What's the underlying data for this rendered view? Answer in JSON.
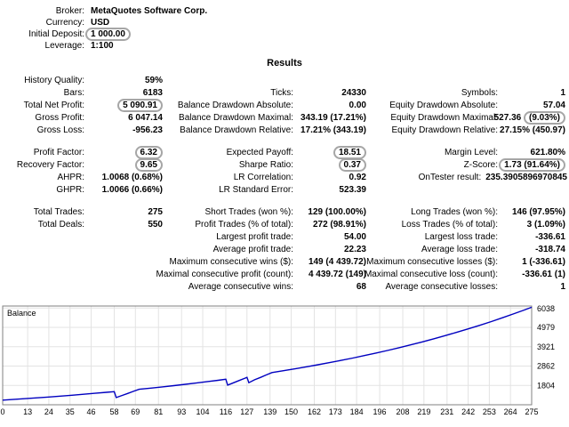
{
  "header": {
    "broker_label": "Broker:",
    "broker_value": "MetaQuotes Software Corp.",
    "currency_label": "Currency:",
    "currency_value": "USD",
    "deposit_label": "Initial Deposit:",
    "deposit_value": "1 000.00",
    "leverage_label": "Leverage:",
    "leverage_value": "1:100"
  },
  "title": "Results",
  "stats": {
    "rows": [
      {
        "cells": [
          {
            "l": "History Quality:",
            "v": "59%"
          },
          null,
          null
        ]
      },
      {
        "cells": [
          {
            "l": "Bars:",
            "v": "6183"
          },
          {
            "l": "Ticks:",
            "v": "24330"
          },
          {
            "l": "Symbols:",
            "v": "1"
          }
        ]
      },
      {
        "cells": [
          {
            "l": "Total Net Profit:",
            "v": "5 090.91",
            "oval": true
          },
          {
            "l": "Balance Drawdown Absolute:",
            "v": "0.00"
          },
          {
            "l": "Equity Drawdown Absolute:",
            "v": "57.04"
          }
        ]
      },
      {
        "cells": [
          {
            "l": "Gross Profit:",
            "v": "6 047.14"
          },
          {
            "l": "Balance Drawdown Maximal:",
            "v": "343.19 (17.21%)"
          },
          {
            "l": "Equity Drawdown Maximal:",
            "pre": "527.36 ",
            "v": "(9.03%)",
            "oval": true
          }
        ]
      },
      {
        "cells": [
          {
            "l": "Gross Loss:",
            "v": "-956.23"
          },
          {
            "l": "Balance Drawdown Relative:",
            "v": "17.21% (343.19)"
          },
          {
            "l": "Equity Drawdown Relative:",
            "v": "27.15% (450.97)"
          }
        ]
      },
      {
        "gap": true
      },
      {
        "cells": [
          {
            "l": "Profit Factor:",
            "v": "6.32",
            "oval": true
          },
          {
            "l": "Expected Payoff:",
            "v": "18.51",
            "oval": true
          },
          {
            "l": "Margin Level:",
            "v": "621.80%"
          }
        ]
      },
      {
        "cells": [
          {
            "l": "Recovery Factor:",
            "v": "9.65",
            "oval": true
          },
          {
            "l": "Sharpe Ratio:",
            "v": "0.37",
            "oval": true
          },
          {
            "l": "Z-Score:",
            "v": "1.73 (91.64%)",
            "oval": true
          }
        ]
      },
      {
        "cells": [
          {
            "l": "AHPR:",
            "v": "1.0068 (0.68%)"
          },
          {
            "l": "LR Correlation:",
            "v": "0.92"
          },
          {
            "l": "OnTester result:",
            "v": "235.3905896970845",
            "inline": true
          }
        ]
      },
      {
        "cells": [
          {
            "l": "GHPR:",
            "v": "1.0066 (0.66%)"
          },
          {
            "l": "LR Standard Error:",
            "v": "523.39"
          },
          null
        ]
      },
      {
        "gap": true
      },
      {
        "cells": [
          {
            "l": "Total Trades:",
            "v": "275"
          },
          {
            "l": "Short Trades (won %):",
            "v": "129 (100.00%)"
          },
          {
            "l": "Long Trades (won %):",
            "v": "146 (97.95%)"
          }
        ]
      },
      {
        "cells": [
          {
            "l": "Total Deals:",
            "v": "550"
          },
          {
            "l": "Profit Trades (% of total):",
            "v": "272 (98.91%)"
          },
          {
            "l": "Loss Trades (% of total):",
            "v": "3 (1.09%)"
          }
        ]
      },
      {
        "cells": [
          null,
          {
            "l": "Largest profit trade:",
            "v": "54.00"
          },
          {
            "l": "Largest loss trade:",
            "v": "-336.61"
          }
        ]
      },
      {
        "cells": [
          null,
          {
            "l": "Average profit trade:",
            "v": "22.23"
          },
          {
            "l": "Average loss trade:",
            "v": "-318.74"
          }
        ]
      },
      {
        "cells": [
          null,
          {
            "l": "Maximum consecutive wins ($):",
            "v": "149 (4 439.72)"
          },
          {
            "l": "Maximum consecutive losses ($):",
            "v": "1 (-336.61)"
          }
        ]
      },
      {
        "cells": [
          null,
          {
            "l": "Maximal consecutive profit (count):",
            "v": "4 439.72 (149)"
          },
          {
            "l": "Maximal consecutive loss (count):",
            "v": "-336.61 (1)"
          }
        ]
      },
      {
        "cells": [
          null,
          {
            "l": "Average consecutive wins:",
            "v": "68"
          },
          {
            "l": "Average consecutive losses:",
            "v": "1"
          }
        ]
      }
    ]
  },
  "chart_data": {
    "type": "line",
    "title": "Balance",
    "x_range": [
      0,
      275
    ],
    "y_range": [
      745,
      6150
    ],
    "x_ticks": [
      0,
      13,
      24,
      35,
      46,
      58,
      69,
      81,
      93,
      104,
      116,
      127,
      139,
      150,
      162,
      173,
      184,
      196,
      208,
      219,
      231,
      242,
      253,
      264,
      275
    ],
    "y_ticks": [
      1804,
      2862,
      3921,
      4979,
      6038
    ],
    "grid": true,
    "line_color": "#0000c0",
    "grid_color": "#e3e3e3",
    "border_color": "#808080",
    "series": [
      {
        "name": "Balance",
        "points": [
          [
            0,
            1000
          ],
          [
            6,
            1040
          ],
          [
            12,
            1082
          ],
          [
            18,
            1126
          ],
          [
            24,
            1171
          ],
          [
            30,
            1218
          ],
          [
            36,
            1267
          ],
          [
            42,
            1318
          ],
          [
            48,
            1371
          ],
          [
            54,
            1426
          ],
          [
            58,
            1463
          ],
          [
            59,
            1137
          ],
          [
            62,
            1250
          ],
          [
            65,
            1364
          ],
          [
            68,
            1479
          ],
          [
            71,
            1594
          ],
          [
            77,
            1658
          ],
          [
            83,
            1724
          ],
          [
            89,
            1794
          ],
          [
            95,
            1866
          ],
          [
            101,
            1941
          ],
          [
            107,
            2019
          ],
          [
            112,
            2086
          ],
          [
            116,
            2142
          ],
          [
            117,
            1820
          ],
          [
            120,
            1947
          ],
          [
            123,
            2074
          ],
          [
            126,
            2203
          ],
          [
            127,
            2246
          ],
          [
            128,
            1953
          ],
          [
            131,
            2111
          ],
          [
            134,
            2242
          ],
          [
            137,
            2374
          ],
          [
            140,
            2507
          ],
          [
            146,
            2608
          ],
          [
            152,
            2713
          ],
          [
            158,
            2822
          ],
          [
            164,
            2935
          ],
          [
            170,
            3053
          ],
          [
            176,
            3175
          ],
          [
            182,
            3303
          ],
          [
            188,
            3436
          ],
          [
            194,
            3574
          ],
          [
            200,
            3717
          ],
          [
            206,
            3866
          ],
          [
            212,
            4022
          ],
          [
            218,
            4183
          ],
          [
            224,
            4352
          ],
          [
            230,
            4527
          ],
          [
            236,
            4709
          ],
          [
            242,
            4898
          ],
          [
            248,
            5095
          ],
          [
            254,
            5300
          ],
          [
            260,
            5512
          ],
          [
            266,
            5734
          ],
          [
            271,
            5925
          ],
          [
            275,
            6082
          ]
        ]
      }
    ]
  }
}
